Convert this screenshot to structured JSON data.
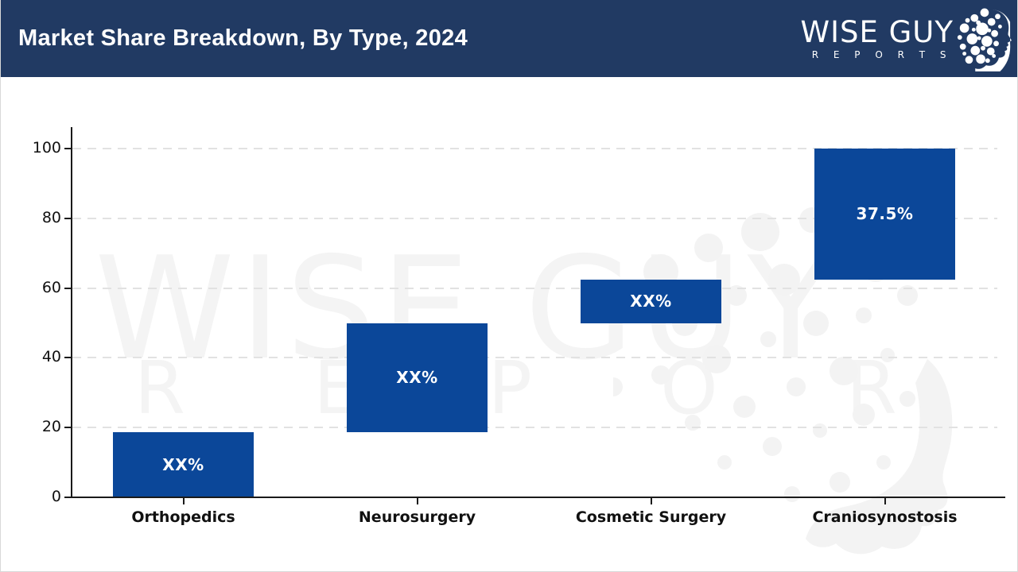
{
  "header": {
    "title": "Market Share Breakdown, By Type, 2024",
    "logo": {
      "line1": "WISE GUY",
      "line2": "R E P O R T S"
    }
  },
  "watermark": {
    "line1": "WISE GUY",
    "line2": "R E P O R T S"
  },
  "icons": {
    "logo_head": "dotted-head-profile",
    "watermark_head": "dotted-head-profile"
  },
  "colors": {
    "header_background": "#213a63",
    "bar_fill": "#0b4799",
    "bar_label": "#ffffff",
    "gridline": "#e2e2e2",
    "axis": "#1a1a1a",
    "watermark": "#f4f4f4"
  },
  "chart_data": {
    "type": "bar",
    "subtype": "waterfall",
    "title": "Market Share Breakdown, By Type, 2024",
    "categories": [
      "Orthopedics",
      "Neurosurgery",
      "Cosmetic Surgery",
      "Craniosynostosis"
    ],
    "bars": [
      {
        "category": "Orthopedics",
        "start": 0,
        "end": 18.75,
        "label": "XX%"
      },
      {
        "category": "Neurosurgery",
        "start": 18.75,
        "end": 50,
        "label": "XX%"
      },
      {
        "category": "Cosmetic Surgery",
        "start": 50,
        "end": 62.5,
        "label": "XX%"
      },
      {
        "category": "Craniosynostosis",
        "start": 62.5,
        "end": 100,
        "label": "37.5%"
      }
    ],
    "yticks": [
      0,
      20,
      40,
      60,
      80,
      100
    ],
    "ylim": [
      0,
      106
    ],
    "xlabel": "",
    "ylabel": "",
    "grid": "horizontal-dashed",
    "legend": "none",
    "bar_color": "#0b4799",
    "value_label_color": "#ffffff"
  }
}
